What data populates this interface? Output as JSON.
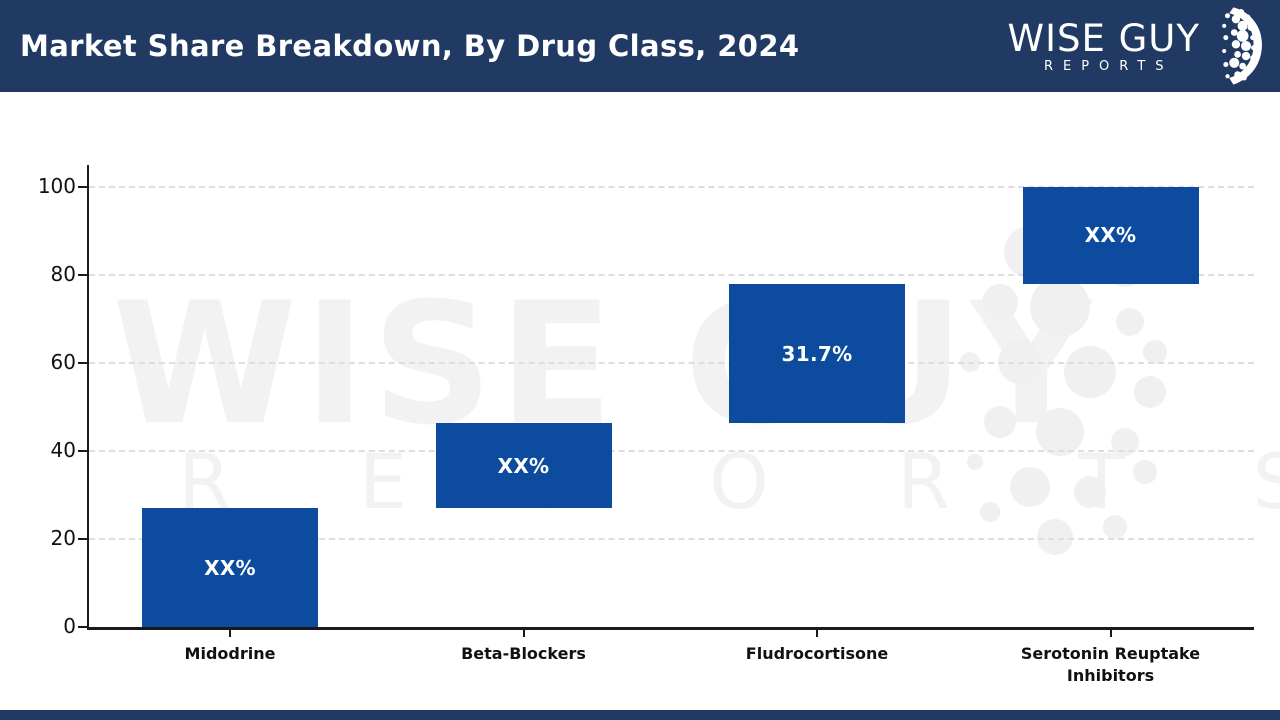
{
  "header": {
    "title": "Market Share Breakdown, By Drug Class, 2024",
    "logo": {
      "line1": "WISE GUY",
      "line2": "REPORTS"
    }
  },
  "watermark": {
    "line1": "WISE GUY",
    "line2": "R E P O R T S"
  },
  "colors": {
    "header_bg": "#213A64",
    "bar": "#0C4B9E",
    "bar_label": "#FFFFFF",
    "axis": "#1A1A1A",
    "grid": "#DEDEDE",
    "text": "#111111",
    "watermark": "#F2F2F2"
  },
  "chart_data": {
    "type": "bar",
    "subtype": "waterfall-floating-bars",
    "title": "Market Share Breakdown, By Drug Class, 2024",
    "categories": [
      "Midodrine",
      "Beta-Blockers",
      "Fludrocortisone",
      "Serotonin Reuptake Inhibitors"
    ],
    "segments": [
      {
        "category": "Midodrine",
        "start": 0,
        "end": 27,
        "label": "XX%"
      },
      {
        "category": "Beta-Blockers",
        "start": 27,
        "end": 46.3,
        "label": "XX%"
      },
      {
        "category": "Fludrocortisone",
        "start": 46.3,
        "end": 78,
        "label": "31.7%"
      },
      {
        "category": "Serotonin Reuptake Inhibitors",
        "start": 78,
        "end": 100,
        "label": "XX%"
      }
    ],
    "xlabel": "",
    "ylabel": "",
    "ylim": [
      0,
      105
    ],
    "yticks": [
      0,
      20,
      40,
      60,
      80,
      100
    ],
    "grid": "horizontal-dashed",
    "legend": "none",
    "bar_color": "#0C4B9E"
  }
}
